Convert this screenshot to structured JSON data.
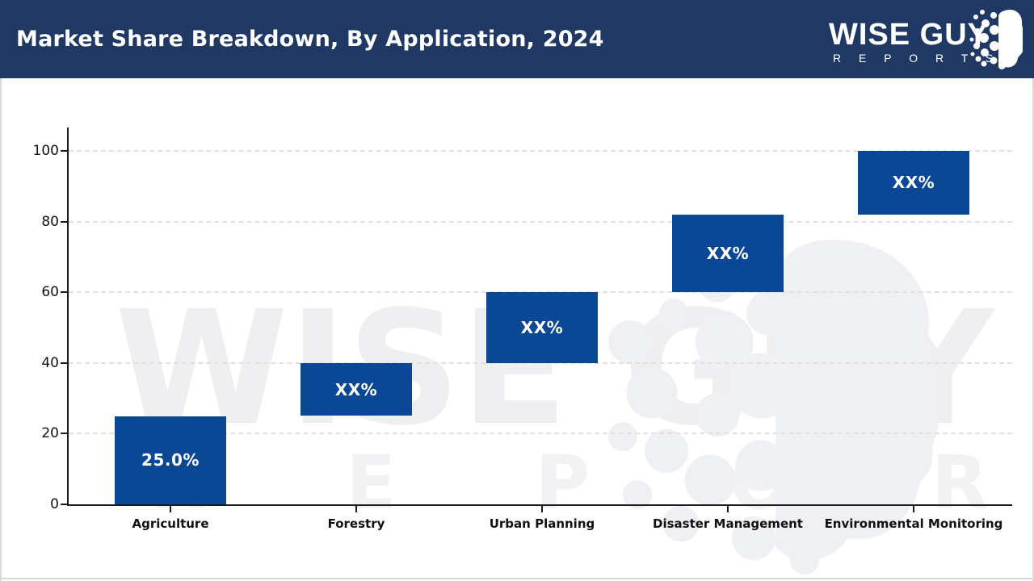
{
  "header": {
    "title": "Market Share Breakdown, By Application, 2024",
    "bg_color": "#1f3864",
    "logo": {
      "line1": "WISE GUY",
      "line2": "R E P O R T S"
    }
  },
  "watermark": {
    "line1": "WISE GUY",
    "line2": "R E P O R T S"
  },
  "chart_data": {
    "type": "bar",
    "subtype": "waterfall",
    "title": "Market Share Breakdown, By Application, 2024",
    "categories": [
      "Agriculture",
      "Forestry",
      "Urban Planning",
      "Disaster Management",
      "Environmental Monitoring"
    ],
    "segments": [
      {
        "category": "Agriculture",
        "start": 0,
        "end": 25,
        "label": "25.0%"
      },
      {
        "category": "Forestry",
        "start": 25,
        "end": 40,
        "label": "XX%"
      },
      {
        "category": "Urban Planning",
        "start": 40,
        "end": 60,
        "label": "XX%"
      },
      {
        "category": "Disaster Management",
        "start": 60,
        "end": 82,
        "label": "XX%"
      },
      {
        "category": "Environmental Monitoring",
        "start": 82,
        "end": 100,
        "label": "XX%"
      }
    ],
    "ylim": [
      0,
      100
    ],
    "yticks": [
      0,
      20,
      40,
      60,
      80,
      100
    ],
    "grid": "horizontal dashed",
    "legend": "none",
    "xlabel": "",
    "ylabel": "",
    "bar_color": "#0a4795",
    "label_color": "#ffffff"
  }
}
